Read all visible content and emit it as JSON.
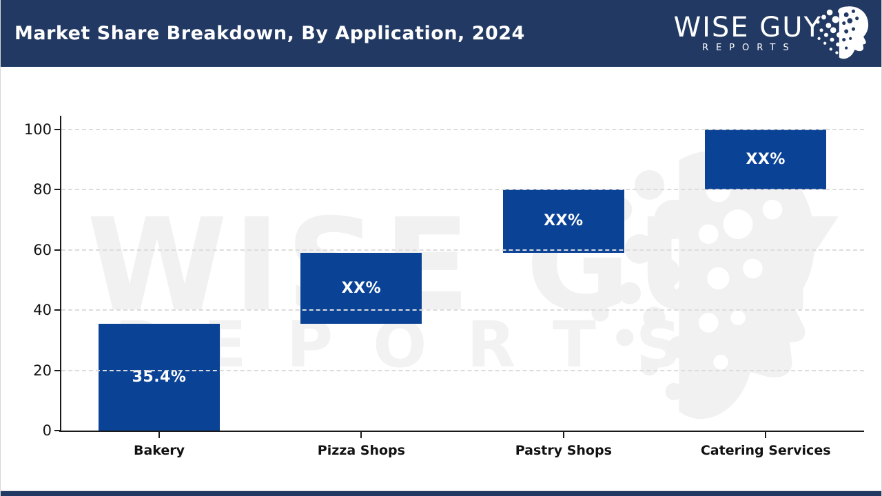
{
  "header": {
    "title": "Market Share Breakdown, By Application, 2024",
    "bg_color": "#223a63",
    "logo": {
      "line1": "WISE GUY",
      "line2": "REPORTS"
    }
  },
  "watermark": {
    "line1": "WISE GUY",
    "line2": "REPORTS"
  },
  "chart_data": {
    "type": "bar",
    "subtype": "waterfall",
    "title": "Market Share Breakdown, By Application, 2024",
    "categories": [
      "Bakery",
      "Pizza Shops",
      "Pastry Shops",
      "Catering Services"
    ],
    "segments": [
      {
        "category": "Bakery",
        "start": 0,
        "end": 35.4,
        "label": "35.4%"
      },
      {
        "category": "Pizza Shops",
        "start": 35.4,
        "end": 59,
        "label": "XX%"
      },
      {
        "category": "Pastry Shops",
        "start": 59,
        "end": 80,
        "label": "XX%"
      },
      {
        "category": "Catering Services",
        "start": 80,
        "end": 100,
        "label": "XX%"
      }
    ],
    "xlabel": "",
    "ylabel": "",
    "y_ticks": [
      0,
      20,
      40,
      60,
      80,
      100
    ],
    "ylim": [
      0,
      105
    ],
    "grid": "horizontal-dashed",
    "legend": "none",
    "bar_color": "#0a4296",
    "bar_label_color": "#ffffff",
    "axis_color": "#1a1a1a",
    "gridline_color": "#dcdcdc"
  }
}
